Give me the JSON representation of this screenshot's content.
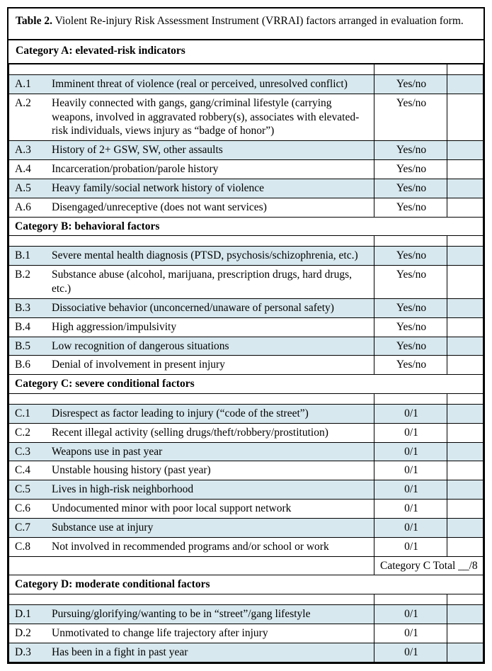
{
  "caption_bold": "Table 2.",
  "caption_rest": " Violent Re-injury Risk Assessment Instrument (VRRAI) factors arranged in evaluation form.",
  "colors": {
    "shade": "#d7e8ee",
    "border": "#000000",
    "bg": "#ffffff"
  },
  "catA": {
    "title": "Category A: elevated-risk indicators",
    "val": "Yes/no",
    "rows": [
      {
        "code": "A.1",
        "text": "Imminent threat of violence (real or perceived, unresolved conflict)",
        "shade": true
      },
      {
        "code": "A.2",
        "text": "Heavily connected with gangs, gang/criminal lifestyle (carrying weapons, involved in aggravated robbery(s), associates with elevated-risk individuals, views injury as “badge of honor”)",
        "shade": false
      },
      {
        "code": "A.3",
        "text": "History of 2+ GSW, SW, other assaults",
        "shade": true
      },
      {
        "code": "A.4",
        "text": "Incarceration/probation/parole history",
        "shade": false
      },
      {
        "code": "A.5",
        "text": "Heavy family/social network history of violence",
        "shade": true
      },
      {
        "code": "A.6",
        "text": "Disengaged/unreceptive (does not want services)",
        "shade": false
      }
    ]
  },
  "catB": {
    "title": "Category B: behavioral factors",
    "val": "Yes/no",
    "rows": [
      {
        "code": "B.1",
        "text": "Severe mental health diagnosis (PTSD, psychosis/schizophrenia, etc.)",
        "shade": true
      },
      {
        "code": "B.2",
        "text": "Substance abuse (alcohol, marijuana, prescription drugs, hard drugs, etc.)",
        "shade": false
      },
      {
        "code": "B.3",
        "text": "Dissociative behavior (unconcerned/unaware of personal safety)",
        "shade": true
      },
      {
        "code": "B.4",
        "text": "High aggression/impulsivity",
        "shade": false
      },
      {
        "code": "B.5",
        "text": "Low recognition of dangerous situations",
        "shade": true
      },
      {
        "code": "B.6",
        "text": "Denial of involvement in present injury",
        "shade": false
      }
    ]
  },
  "catC": {
    "title": "Category C: severe conditional factors",
    "val": "0/1",
    "rows": [
      {
        "code": "C.1",
        "text": "Disrespect as factor leading to injury (“code of the street”)",
        "shade": true
      },
      {
        "code": "C.2",
        "text": "Recent illegal activity (selling drugs/theft/robbery/prostitution)",
        "shade": false
      },
      {
        "code": "C.3",
        "text": "Weapons use in past year",
        "shade": true
      },
      {
        "code": "C.4",
        "text": "Unstable housing history (past year)",
        "shade": false
      },
      {
        "code": "C.5",
        "text": "Lives in high-risk neighborhood",
        "shade": true
      },
      {
        "code": "C.6",
        "text": "Undocumented minor with poor local support network",
        "shade": false
      },
      {
        "code": "C.7",
        "text": "Substance use at injury",
        "shade": true
      },
      {
        "code": "C.8",
        "text": "Not involved in recommended programs and/or school or work",
        "shade": false
      }
    ],
    "total_label": "Category C Total __/8"
  },
  "catD": {
    "title": "Category D: moderate conditional factors",
    "val": "0/1",
    "rows": [
      {
        "code": "D.1",
        "text": "Pursuing/glorifying/wanting to be in “street”/gang lifestyle",
        "shade": true
      },
      {
        "code": "D.2",
        "text": "Unmotivated to change life trajectory after injury",
        "shade": false
      },
      {
        "code": "D.3",
        "text": "Has been in a fight in past year",
        "shade": true
      }
    ]
  }
}
